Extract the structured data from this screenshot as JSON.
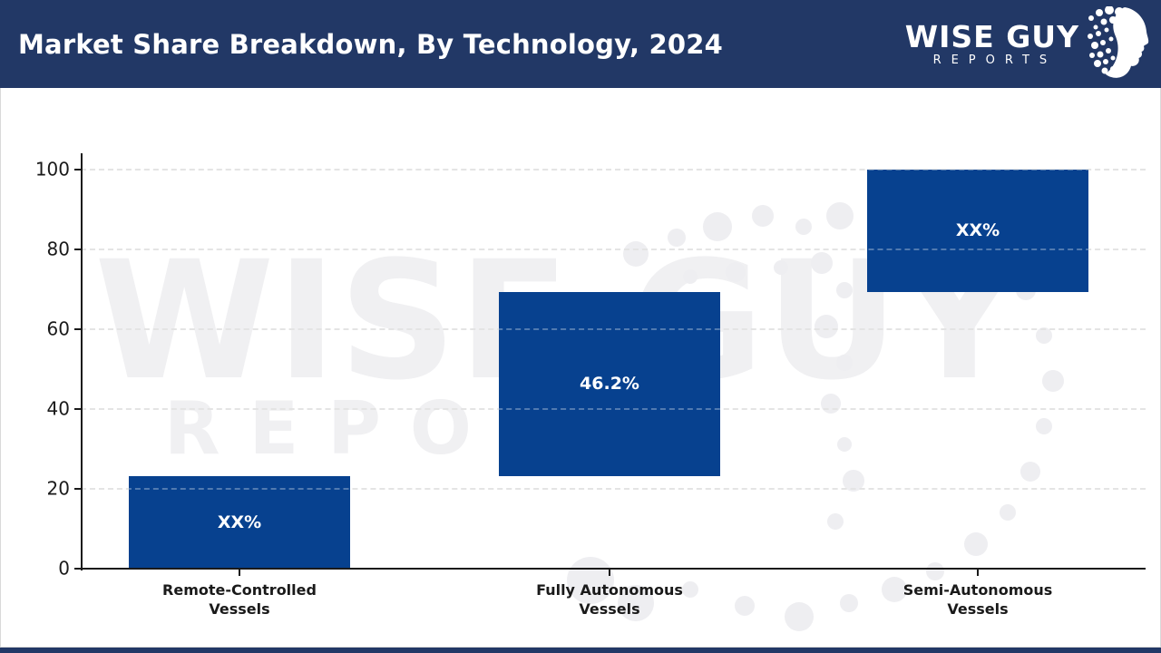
{
  "header": {
    "title": "Market Share Breakdown, By Technology, 2024",
    "logo": {
      "name": "WISE GUY",
      "sub": "REPORTS"
    }
  },
  "watermark": {
    "line1": "WISE GUY",
    "line2": "REPORTS"
  },
  "colors": {
    "header_bg": "#223866",
    "bar_fill": "#07418F",
    "gridline": "#D9D9D9",
    "axis": "#1A1A1A",
    "watermark": "#F0F0F2",
    "bar_label_text": "#FFFFFF",
    "footer_bg": "#223866"
  },
  "icons": {
    "logo_face": "face-profile-dots-icon"
  },
  "chart_data": {
    "type": "bar",
    "subtype": "floating-segment-waterfall",
    "title": "Market Share Breakdown, By Technology, 2024",
    "xlabel": "",
    "ylabel": "",
    "ylim": [
      0,
      104
    ],
    "yticks": [
      0,
      20,
      40,
      60,
      80,
      100
    ],
    "grid": "horizontal-dashed",
    "legend": "none",
    "categories": [
      "Remote-Controlled Vessels",
      "Fully Autonomous Vessels",
      "Semi-Autonomous Vessels"
    ],
    "category_label_lines": [
      [
        "Remote-Controlled",
        "Vessels"
      ],
      [
        "Fully Autonomous",
        "Vessels"
      ],
      [
        "Semi-Autonomous",
        "Vessels"
      ]
    ],
    "bars": [
      {
        "category": "Remote-Controlled Vessels",
        "base": 0,
        "top": 23.2,
        "span": 23.2,
        "label": "XX%"
      },
      {
        "category": "Fully Autonomous Vessels",
        "base": 23.2,
        "top": 69.4,
        "span": 46.2,
        "label": "46.2%"
      },
      {
        "category": "Semi-Autonomous Vessels",
        "base": 69.4,
        "top": 100,
        "span": 30.6,
        "label": "XX%"
      }
    ]
  }
}
